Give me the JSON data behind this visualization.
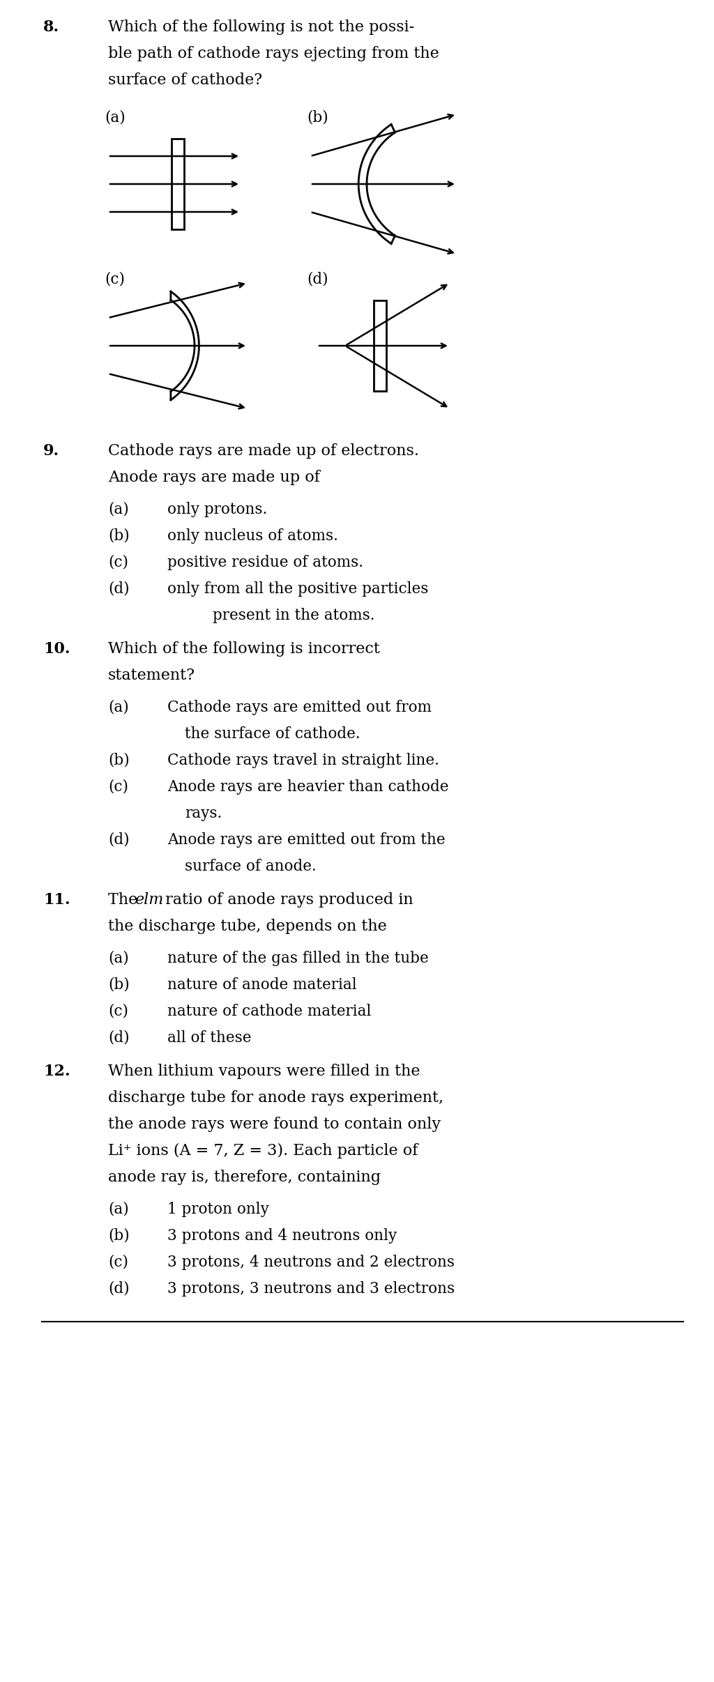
{
  "bg_color": "#ffffff",
  "text_color": "#000000",
  "q8": {
    "number": "8.",
    "lines": [
      "Which of the following is not the possi-",
      "ble path of cathode rays ejecting from the",
      "surface of cathode?"
    ]
  },
  "q9": {
    "number": "9.",
    "lines": [
      "Cathode rays are made up of electrons.",
      "Anode rays are made up of"
    ],
    "options": [
      [
        "(a)",
        "only protons."
      ],
      [
        "(b)",
        "only nucleus of atoms."
      ],
      [
        "(c)",
        "positive residue of atoms."
      ],
      [
        "(d)",
        "only from all the positive particles",
        "present in the atoms."
      ]
    ]
  },
  "q10": {
    "number": "10.",
    "lines": [
      "Which of the following is incorrect",
      "statement?"
    ],
    "options": [
      [
        "(a)",
        "Cathode rays are emitted out from",
        "the surface of cathode."
      ],
      [
        "(b)",
        "Cathode rays travel in straight line."
      ],
      [
        "(c)",
        "Anode rays are heavier than cathode",
        "rays."
      ],
      [
        "(d)",
        "Anode rays are emitted out from the",
        "surface of anode."
      ]
    ]
  },
  "q11": {
    "number": "11.",
    "line1_pre": "The ",
    "line1_italic": "elm",
    "line1_post": " ratio of anode rays produced in",
    "line2": "the discharge tube, depends on the",
    "options": [
      [
        "(a)",
        "nature of the gas filled in the tube"
      ],
      [
        "(b)",
        "nature of anode material"
      ],
      [
        "(c)",
        "nature of cathode material"
      ],
      [
        "(d)",
        "all of these"
      ]
    ]
  },
  "q12": {
    "number": "12.",
    "lines": [
      "When lithium vapours were filled in the",
      "discharge tube for anode rays experiment,",
      "the anode rays were found to contain only",
      "Li⁺ ions (A = 7, Z = 3). Each particle of",
      "anode ray is, therefore, containing"
    ],
    "options": [
      [
        "(a)",
        "1 proton only"
      ],
      [
        "(b)",
        "3 protons and 4 neutrons only"
      ],
      [
        "(c)",
        "3 protons, 4 neutrons and 2 electrons"
      ],
      [
        "(d)",
        "3 protons, 3 neutrons and 3 electrons"
      ]
    ]
  },
  "font_size": 16,
  "opt_font_size": 15.5
}
